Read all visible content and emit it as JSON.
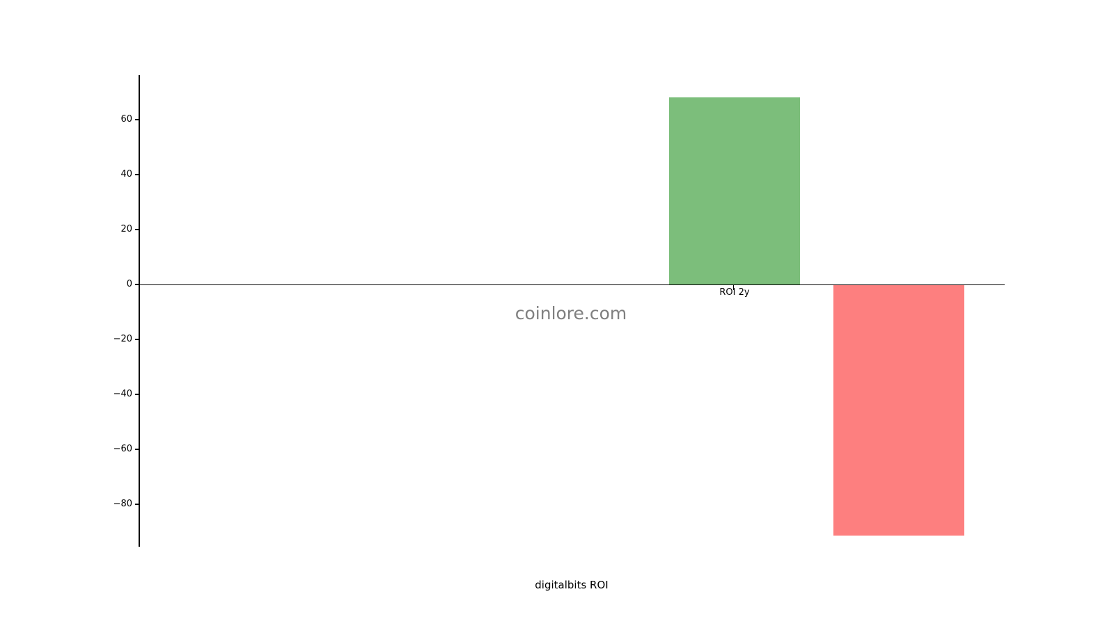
{
  "chart_data": {
    "type": "bar",
    "title": "",
    "xlabel": "digitalbits ROI",
    "ylabel": "",
    "watermark": "coinlore.com",
    "categories": [
      "ROI 2y",
      ""
    ],
    "values": [
      68,
      -91
    ],
    "bar_colors": [
      "#7cbe7b",
      "#fd7f7f"
    ],
    "positive_color": "#7cbe7b",
    "negative_color": "#fd7f7f",
    "ylim": [
      -95,
      76
    ],
    "y_ticks": [
      {
        "value": 60,
        "label": "60"
      },
      {
        "value": 40,
        "label": "40"
      },
      {
        "value": 20,
        "label": "20"
      },
      {
        "value": 0,
        "label": "0"
      },
      {
        "value": -20,
        "label": "−20"
      },
      {
        "value": -40,
        "label": "−40"
      },
      {
        "value": -60,
        "label": "−60"
      },
      {
        "value": -80,
        "label": "−80"
      }
    ],
    "grid": false,
    "legend_position": "none",
    "axis_color": "#000000",
    "text_color": "#000000",
    "watermark_color": "#7f7f7f",
    "background_color": "#ffffff"
  }
}
